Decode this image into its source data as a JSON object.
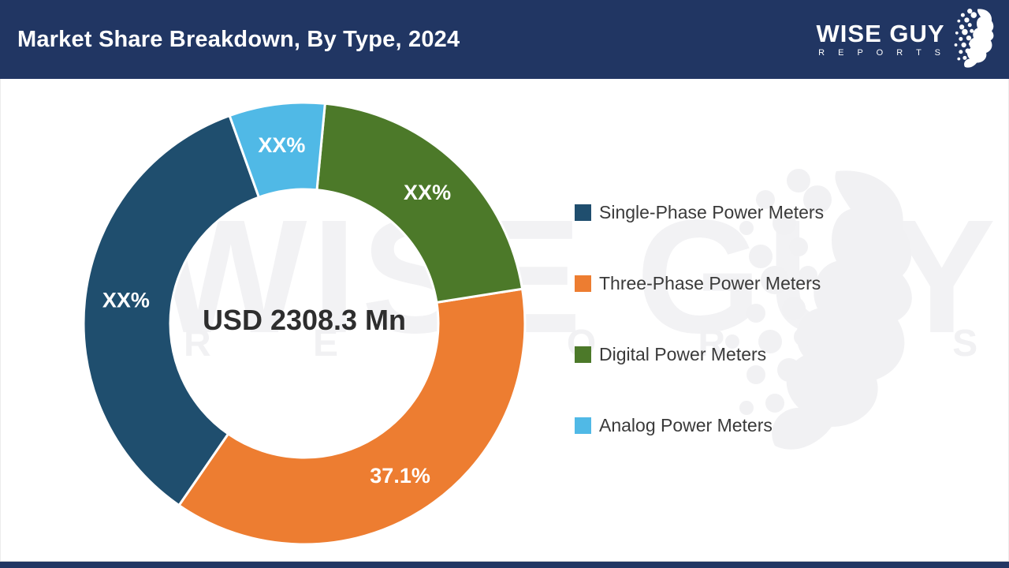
{
  "header": {
    "title": "Market Share Breakdown, By Type, 2024",
    "logo": {
      "line1": "WISE GUY",
      "line2": "R E P O R T S"
    }
  },
  "chart_data": {
    "type": "pie",
    "subtype": "donut",
    "title": "Market Share Breakdown, By Type, 2024",
    "center_label": "USD 2308.3 Mn",
    "start_angle_deg": -19.8,
    "direction": "counterclockwise",
    "legend_position": "right",
    "series": [
      {
        "name": "Single-Phase Power Meters",
        "display_label": "XX%",
        "value_pct": 34.9,
        "color": "#1F4E6E"
      },
      {
        "name": "Three-Phase Power Meters",
        "display_label": "37.1%",
        "value_pct": 37.1,
        "color": "#ED7D31"
      },
      {
        "name": "Digital Power Meters",
        "display_label": "XX%",
        "value_pct": 21.0,
        "color": "#4C7929"
      },
      {
        "name": "Analog Power Meters",
        "display_label": "XX%",
        "value_pct": 7.0,
        "color": "#50B9E6"
      }
    ]
  },
  "legend": {
    "items": [
      {
        "label": "Single-Phase Power Meters",
        "color": "#1F4E6E"
      },
      {
        "label": "Three-Phase Power Meters",
        "color": "#ED7D31"
      },
      {
        "label": "Digital Power Meters",
        "color": "#4C7929"
      },
      {
        "label": "Analog Power Meters",
        "color": "#50B9E6"
      }
    ]
  },
  "watermark": {
    "line1": "WISE GUY",
    "line2": "R E P O R T S"
  },
  "colors": {
    "header_bg": "#213663",
    "footer_bg": "#213663",
    "center_text": "#2e2e2e",
    "legend_text": "#3a3a3a",
    "watermark": "#f2f2f4"
  }
}
